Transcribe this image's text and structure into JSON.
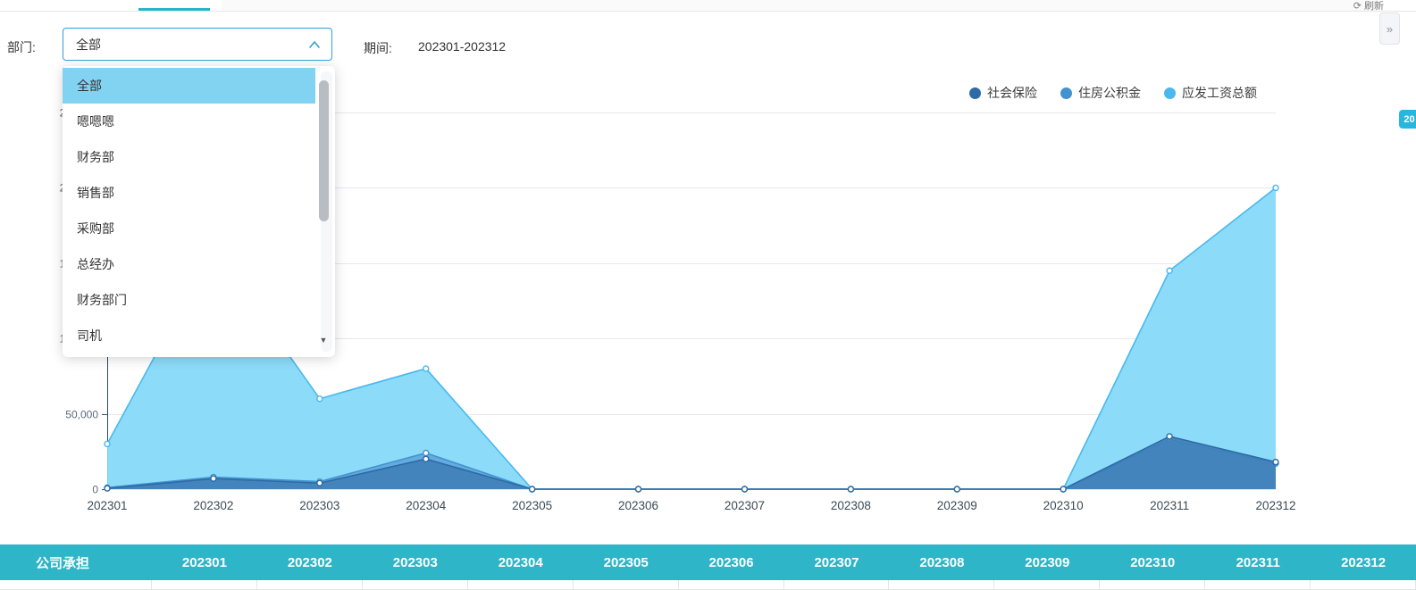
{
  "top_bar": {
    "refresh_label": "刷新",
    "refresh_icon": "⟳",
    "collapse_glyph": "»"
  },
  "filters": {
    "department_label": "部门:",
    "department_value": "全部",
    "period_label": "期间:",
    "period_value": "202301-202312"
  },
  "dropdown": {
    "items": [
      "全部",
      "嗯嗯嗯",
      "财务部",
      "销售部",
      "采购部",
      "总经办",
      "财务部门",
      "司机"
    ],
    "selected_index": 0,
    "scroll_arrow": "▼"
  },
  "side_badge": "20",
  "chart_data": {
    "type": "area",
    "title": "",
    "xlabel": "",
    "ylabel": "",
    "categories": [
      "202301",
      "202302",
      "202303",
      "202304",
      "202305",
      "202306",
      "202307",
      "202308",
      "202309",
      "202310",
      "202311",
      "202312"
    ],
    "series": [
      {
        "name": "社会保险",
        "color": "#2e6aa6",
        "fill": "#4080ba",
        "values": [
          500,
          7000,
          4000,
          20000,
          0,
          0,
          0,
          0,
          0,
          0,
          35000,
          18000
        ]
      },
      {
        "name": "住房公积金",
        "color": "#4392cf",
        "fill": "#62a7db",
        "values": [
          1000,
          8000,
          5000,
          24000,
          0,
          0,
          0,
          0,
          0,
          0,
          33000,
          17000
        ]
      },
      {
        "name": "应发工资总额",
        "color": "#49b8ef",
        "fill": "#82d9f9",
        "values": [
          30000,
          160000,
          60000,
          80000,
          0,
          0,
          0,
          0,
          0,
          0,
          145000,
          200000
        ]
      }
    ],
    "ylim": [
      0,
      250000
    ],
    "yticks": [
      0,
      50000,
      100000,
      150000,
      200000,
      250000
    ],
    "ytick_labels": [
      "0",
      "50,000",
      "100,000",
      "150,000",
      "200,000",
      "250,000"
    ],
    "grid": true,
    "legend_position": "top-right"
  },
  "table": {
    "header": [
      "公司承担",
      "202301",
      "202302",
      "202303",
      "202304",
      "202305",
      "202306",
      "202307",
      "202308",
      "202309",
      "202310",
      "202311",
      "202312"
    ]
  }
}
